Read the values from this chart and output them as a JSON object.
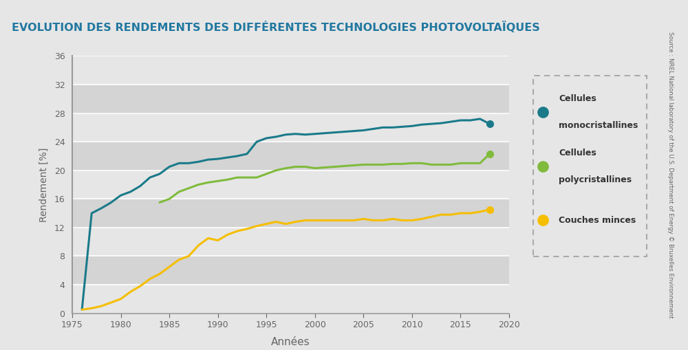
{
  "title": "EVOLUTION DES RENDEMENTS DES DIFFÉRENTES TECHNOLOGIES PHOTOVOLTAÏQUES",
  "xlabel": "Années",
  "ylabel": "Rendement [%]",
  "source_text": "Source : NREL National laboratory of the U.S. Department of Energy © Bruxelles Environnement",
  "background_color": "#e6e6e6",
  "plot_bg_color": "#e6e6e6",
  "title_bg_color": "#ffffff",
  "title_color": "#2278a0",
  "axis_label_color": "#666666",
  "tick_color": "#666666",
  "ylim": [
    0,
    36
  ],
  "yticks": [
    0,
    4,
    8,
    12,
    16,
    20,
    24,
    28,
    32,
    36
  ],
  "xlim": [
    1975,
    2020
  ],
  "xticks": [
    1975,
    1980,
    1985,
    1990,
    1995,
    2000,
    2005,
    2010,
    2015,
    2020
  ],
  "band_light": "#e6e6e6",
  "band_dark": "#d4d4d4",
  "grid_line_color": "#ffffff",
  "spine_color": "#999999",
  "series": {
    "mono": {
      "color": "#1a7a8a",
      "label_line1": "Cellules",
      "label_line2": "monocristallines",
      "x": [
        1976,
        1977,
        1978,
        1979,
        1980,
        1981,
        1982,
        1983,
        1984,
        1985,
        1986,
        1987,
        1988,
        1989,
        1990,
        1991,
        1992,
        1993,
        1994,
        1995,
        1996,
        1997,
        1998,
        1999,
        2000,
        2001,
        2002,
        2003,
        2004,
        2005,
        2006,
        2007,
        2008,
        2009,
        2010,
        2011,
        2012,
        2013,
        2014,
        2015,
        2016,
        2017,
        2018
      ],
      "y": [
        0.5,
        14.0,
        14.7,
        15.5,
        16.5,
        17.0,
        17.8,
        19.0,
        19.5,
        20.5,
        21.0,
        21.0,
        21.2,
        21.5,
        21.6,
        21.8,
        22.0,
        22.3,
        24.0,
        24.5,
        24.7,
        25.0,
        25.1,
        25.0,
        25.1,
        25.2,
        25.3,
        25.4,
        25.5,
        25.6,
        25.8,
        26.0,
        26.0,
        26.1,
        26.2,
        26.4,
        26.5,
        26.6,
        26.8,
        27.0,
        27.0,
        27.2,
        26.5
      ]
    },
    "poly": {
      "color": "#80bb3c",
      "label_line1": "Cellules",
      "label_line2": "polycristallines",
      "x": [
        1984,
        1985,
        1986,
        1987,
        1988,
        1989,
        1990,
        1991,
        1992,
        1993,
        1994,
        1995,
        1996,
        1997,
        1998,
        1999,
        2000,
        2001,
        2002,
        2003,
        2004,
        2005,
        2006,
        2007,
        2008,
        2009,
        2010,
        2011,
        2012,
        2013,
        2014,
        2015,
        2016,
        2017,
        2018
      ],
      "y": [
        15.5,
        16.0,
        17.0,
        17.5,
        18.0,
        18.3,
        18.5,
        18.7,
        19.0,
        19.0,
        19.0,
        19.5,
        20.0,
        20.3,
        20.5,
        20.5,
        20.3,
        20.4,
        20.5,
        20.6,
        20.7,
        20.8,
        20.8,
        20.8,
        20.9,
        20.9,
        21.0,
        21.0,
        20.8,
        20.8,
        20.8,
        21.0,
        21.0,
        21.0,
        22.3
      ]
    },
    "thin": {
      "color": "#f5be00",
      "label_line1": "Couches minces",
      "label_line2": "",
      "x": [
        1976,
        1977,
        1978,
        1979,
        1980,
        1981,
        1982,
        1983,
        1984,
        1985,
        1986,
        1987,
        1988,
        1989,
        1990,
        1991,
        1992,
        1993,
        1994,
        1995,
        1996,
        1997,
        1998,
        1999,
        2000,
        2001,
        2002,
        2003,
        2004,
        2005,
        2006,
        2007,
        2008,
        2009,
        2010,
        2011,
        2012,
        2013,
        2014,
        2015,
        2016,
        2017,
        2018
      ],
      "y": [
        0.5,
        0.7,
        1.0,
        1.5,
        2.0,
        3.0,
        3.8,
        4.8,
        5.5,
        6.5,
        7.5,
        8.0,
        9.5,
        10.5,
        10.2,
        11.0,
        11.5,
        11.8,
        12.2,
        12.5,
        12.8,
        12.5,
        12.8,
        13.0,
        13.0,
        13.0,
        13.0,
        13.0,
        13.0,
        13.2,
        13.0,
        13.0,
        13.2,
        13.0,
        13.0,
        13.2,
        13.5,
        13.8,
        13.8,
        14.0,
        14.0,
        14.2,
        14.5
      ]
    }
  },
  "legend_items": [
    {
      "key": "mono",
      "line1": "Cellules",
      "line2": "monocristallines"
    },
    {
      "key": "poly",
      "line1": "Cellules",
      "line2": "polycristallines"
    },
    {
      "key": "thin",
      "line1": "Couches minces",
      "line2": ""
    }
  ]
}
